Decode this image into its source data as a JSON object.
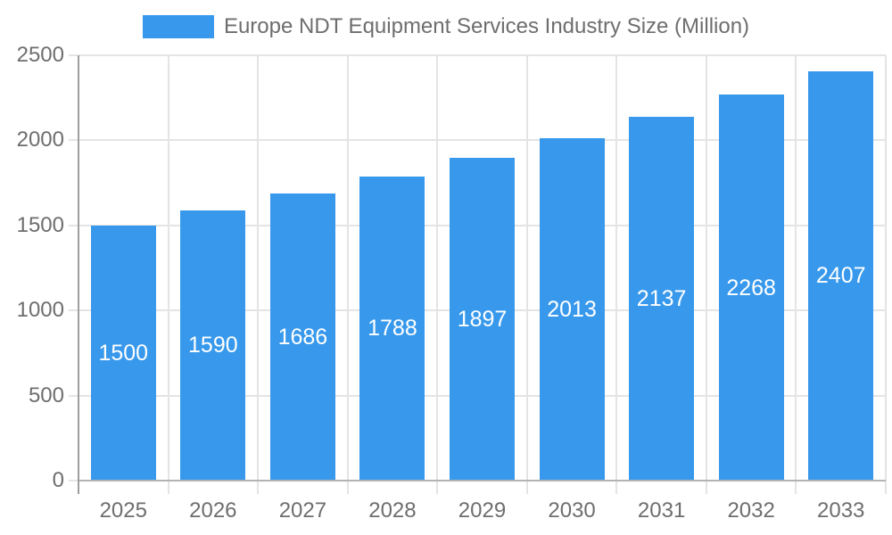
{
  "chart_data": {
    "type": "bar",
    "title": "Europe NDT Equipment Services Industry Size (Million)",
    "categories": [
      "2025",
      "2026",
      "2027",
      "2028",
      "2029",
      "2030",
      "2031",
      "2032",
      "2033"
    ],
    "values": [
      1500,
      1590,
      1686,
      1788,
      1897,
      2013,
      2137,
      2268,
      2407
    ],
    "xlabel": "",
    "ylabel": "",
    "ylim": [
      0,
      2500
    ],
    "yticks": [
      0,
      500,
      1000,
      1500,
      2000,
      2500
    ],
    "grid": true,
    "legend_position": "top",
    "value_labels": "inside-center"
  },
  "colors": {
    "bar": "#3899ec",
    "grid_light": "#e4e4e4",
    "baseline": "#b3b3b3",
    "y_axis_line": "#9e9e9e",
    "axis_text": "#6e6e6e",
    "value_label_text": "#ffffff",
    "background": "#ffffff"
  }
}
